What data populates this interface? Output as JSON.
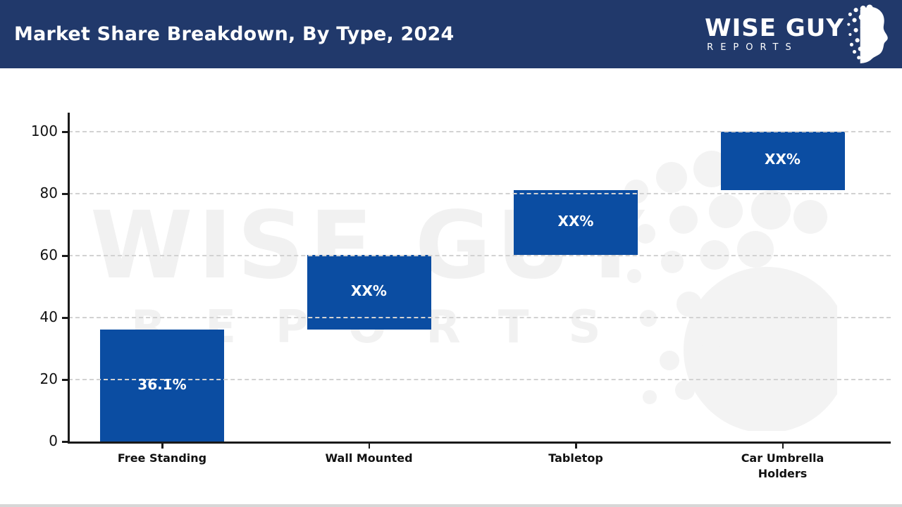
{
  "header": {
    "title": "Market Share Breakdown, By Type, 2024",
    "bg_color": "#21396B",
    "logo": {
      "line1": "WISE GUY",
      "line2": "REPORTS"
    }
  },
  "watermark": {
    "line1": "WISE GUY",
    "line2": "REPORTS"
  },
  "chart_data": {
    "type": "bar",
    "subtype": "waterfall",
    "title": "Market Share Breakdown, By Type, 2024",
    "categories": [
      "Free Standing",
      "Wall Mounted",
      "Tabletop",
      "Car Umbrella Holders"
    ],
    "bars": [
      {
        "category": "Free Standing",
        "start": 0,
        "end": 36.1,
        "label": "36.1%"
      },
      {
        "category": "Wall Mounted",
        "start": 36.1,
        "end": 60.2,
        "label": "XX%"
      },
      {
        "category": "Tabletop",
        "start": 60.2,
        "end": 81.2,
        "label": "XX%"
      },
      {
        "category": "Car Umbrella Holders",
        "start": 81.2,
        "end": 100,
        "label": "XX%"
      }
    ],
    "yticks": [
      0,
      20,
      40,
      60,
      80,
      100
    ],
    "ylim": [
      0,
      100
    ],
    "grid": "horizontal dashed",
    "legend": "none",
    "bar_color": "#0B4DA2",
    "bar_label_color": "#ffffff"
  },
  "colors": {
    "header_bg": "#21396B",
    "bar_blue": "#0B4DA2",
    "axis": "#1a1a1a",
    "grid": "#d2d2d2",
    "watermark": "#f1f1f1"
  }
}
